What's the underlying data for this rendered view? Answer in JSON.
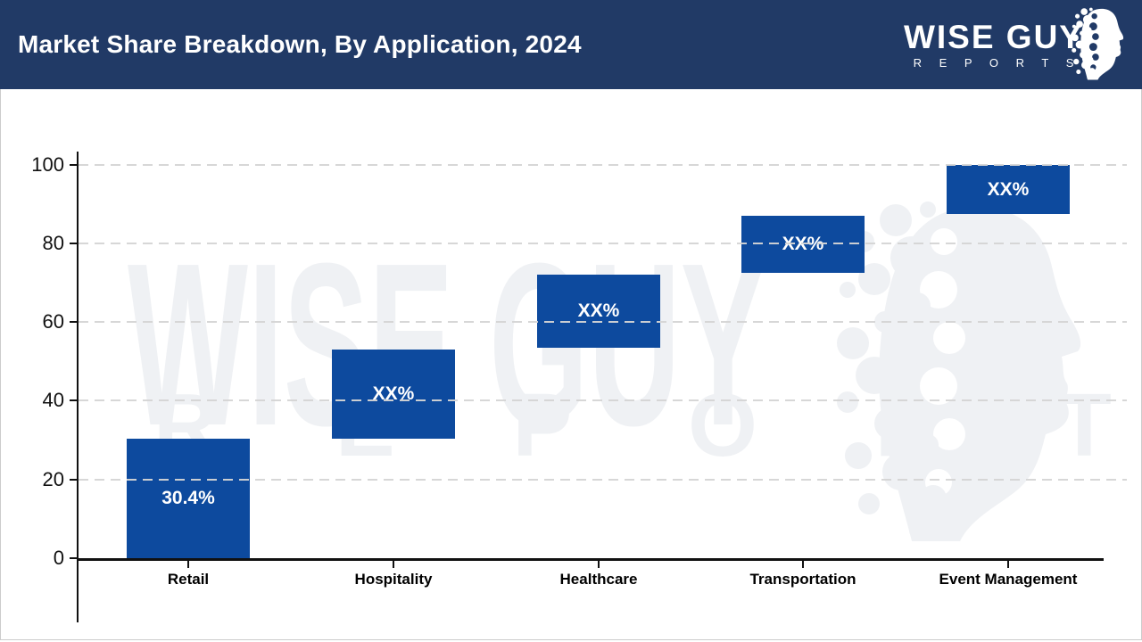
{
  "header": {
    "title": "Market Share Breakdown, By Application, 2024",
    "logo": {
      "line1": "WISE GUY",
      "line2": "R E P O R T S"
    }
  },
  "watermark": {
    "line1": "WISE GUY",
    "line2": "R E P O R T S"
  },
  "colors": {
    "header_bg": "#213a66",
    "bar": "#0d4a9e",
    "bar_label": "#ffffff",
    "gridline": "#d5d5d5",
    "axis": "#111111",
    "watermark": "#eff1f4"
  },
  "chart_data": {
    "type": "bar",
    "subtype": "waterfall",
    "title": "Market Share Breakdown, By Application, 2024",
    "xlabel": "",
    "ylabel": "",
    "categories": [
      "Retail",
      "Hospitality",
      "Healthcare",
      "Transportation",
      "Event Management"
    ],
    "segments": [
      {
        "category": "Retail",
        "start": 0,
        "end": 30.4,
        "label": "30.4%"
      },
      {
        "category": "Hospitality",
        "start": 30.4,
        "end": 53,
        "label": "XX%"
      },
      {
        "category": "Healthcare",
        "start": 53.5,
        "end": 72,
        "label": "XX%"
      },
      {
        "category": "Transportation",
        "start": 72.5,
        "end": 87,
        "label": "XX%"
      },
      {
        "category": "Event Management",
        "start": 87.5,
        "end": 100,
        "label": "XX%"
      }
    ],
    "yticks": [
      0,
      20,
      40,
      60,
      80,
      100
    ],
    "ylim": [
      0,
      106
    ],
    "grid": "horizontal-dashed",
    "legend": "none"
  }
}
